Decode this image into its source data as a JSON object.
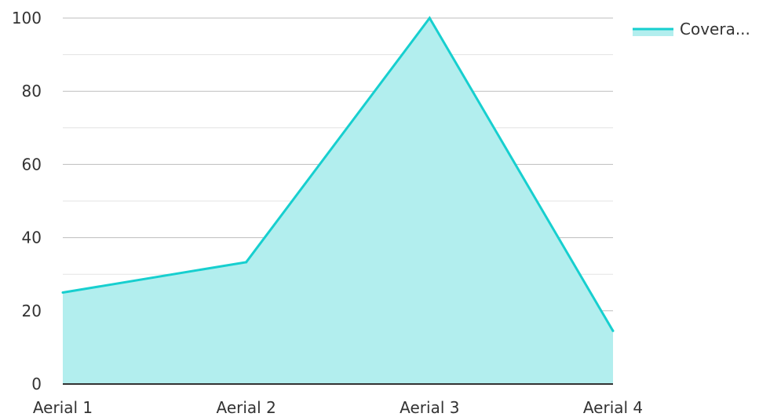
{
  "chart_data": {
    "type": "area",
    "categories": [
      "Aerial 1",
      "Aerial 2",
      "Aerial 3",
      "Aerial 4"
    ],
    "series": [
      {
        "name": "Covera...",
        "values": [
          25,
          33.3,
          100,
          14.5
        ]
      }
    ],
    "ylim": [
      0,
      100
    ],
    "y_ticks": [
      "0",
      "20",
      "40",
      "60",
      "80",
      "100"
    ],
    "minor_gridlines": true,
    "grid": true,
    "legend": {
      "position": "top-right",
      "label": "Covera..."
    },
    "colors": {
      "line": "#17cfcf",
      "fill": "#b2eeee",
      "grid_major": "#bdbdbd",
      "grid_minor": "#e3e3e3",
      "axis": "#333333",
      "text": "#333333"
    }
  }
}
